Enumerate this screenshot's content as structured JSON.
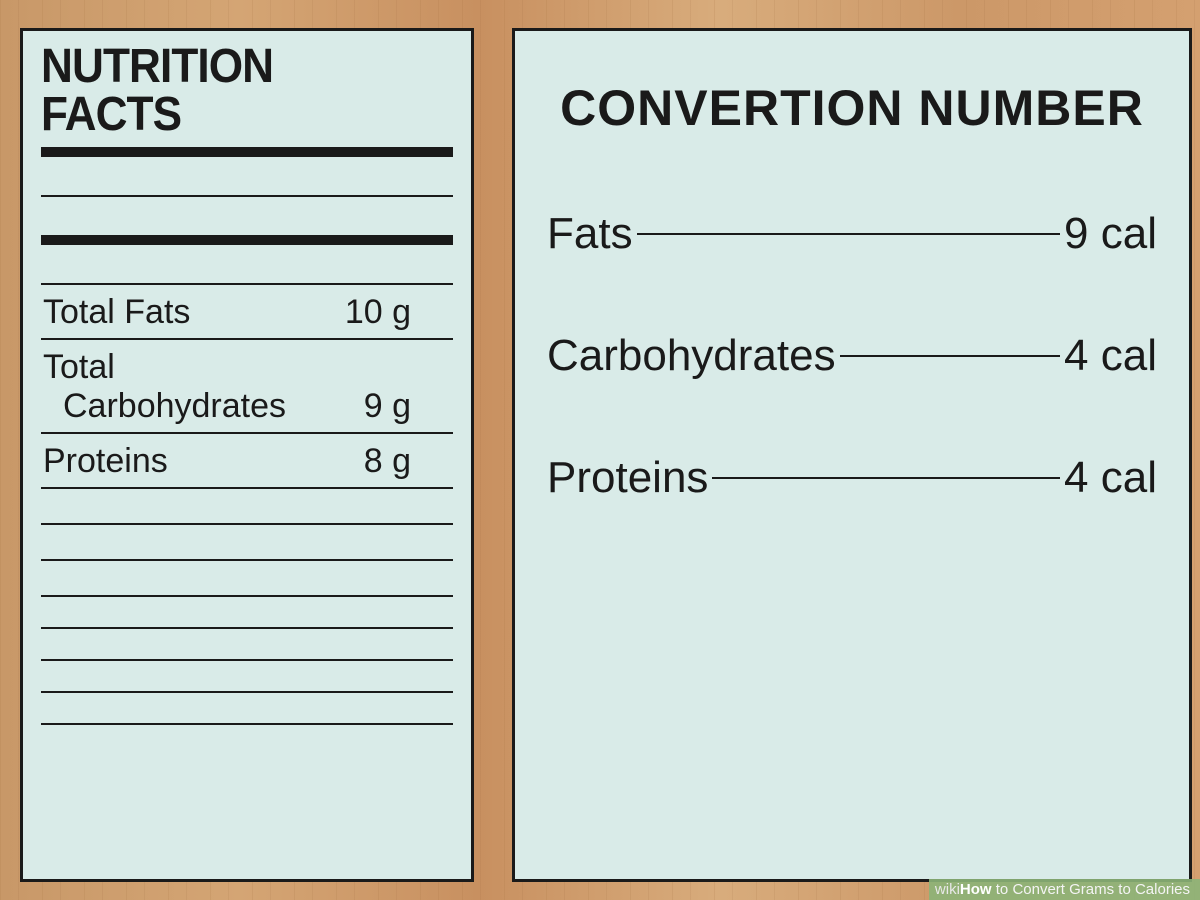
{
  "background": {
    "wood_base_color": "#d4a574",
    "wood_grain_color": "#a06e3c"
  },
  "panel_style": {
    "fill_color": "#d9ebe8",
    "border_color": "#1a1a1a",
    "border_width": 3
  },
  "nutrition_panel": {
    "title": "NUTRITION FACTS",
    "title_fontsize": 48,
    "title_fontweight": 900,
    "rows": [
      {
        "label": "Total Fats",
        "value": "10 g"
      },
      {
        "label_line1": "Total",
        "label_line2": "Carbohydrates",
        "value": "9 g"
      },
      {
        "label": "Proteins",
        "value": "8 g"
      }
    ],
    "row_fontsize": 34,
    "line_color": "#1a1a1a",
    "thick_line_height": 10,
    "thin_line_height": 2
  },
  "conversion_panel": {
    "title": "CONVERTION NUMBER",
    "title_fontsize": 50,
    "title_fontweight": 700,
    "rows": [
      {
        "label": "Fats",
        "value": "9 cal"
      },
      {
        "label": "Carbohydrates",
        "value": "4 cal"
      },
      {
        "label": "Proteins",
        "value": "4 cal"
      }
    ],
    "row_fontsize": 44,
    "connector_line_color": "#1a1a1a"
  },
  "watermark": {
    "prefix": "wiki",
    "brand": "How",
    "text": " to Convert Grams to Calories",
    "bg_color": "rgba(140,180,120,0.9)"
  }
}
